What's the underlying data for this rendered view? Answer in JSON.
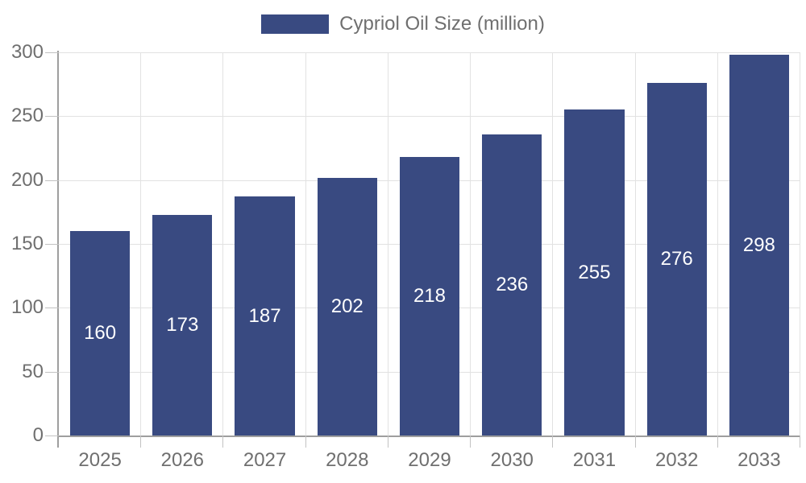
{
  "chart_data": {
    "type": "bar",
    "title": "",
    "legend": {
      "position": "top",
      "entries": [
        "Cypriol Oil Size (million)"
      ]
    },
    "categories": [
      "2025",
      "2026",
      "2027",
      "2028",
      "2029",
      "2030",
      "2031",
      "2032",
      "2033"
    ],
    "series": [
      {
        "name": "Cypriol Oil Size (million)",
        "values": [
          160,
          173,
          187,
          202,
          218,
          236,
          255,
          276,
          298
        ],
        "color": "#394A81"
      }
    ],
    "xlabel": "",
    "ylabel": "",
    "ylim": [
      0,
      300
    ],
    "yticks": [
      0,
      50,
      100,
      150,
      200,
      250,
      300
    ],
    "grid": true,
    "value_labels": {
      "show": true,
      "position": "center",
      "color": "#ffffff"
    },
    "colors": {
      "background": "#ffffff",
      "bar": "#394A81",
      "grid": "#e2e2e2",
      "axis": "#9e9e9e",
      "tick": "#c2c2c2",
      "tick_label": "#6f6f6f",
      "legend_label": "#6f6f6f",
      "value_label": "#ffffff"
    }
  }
}
